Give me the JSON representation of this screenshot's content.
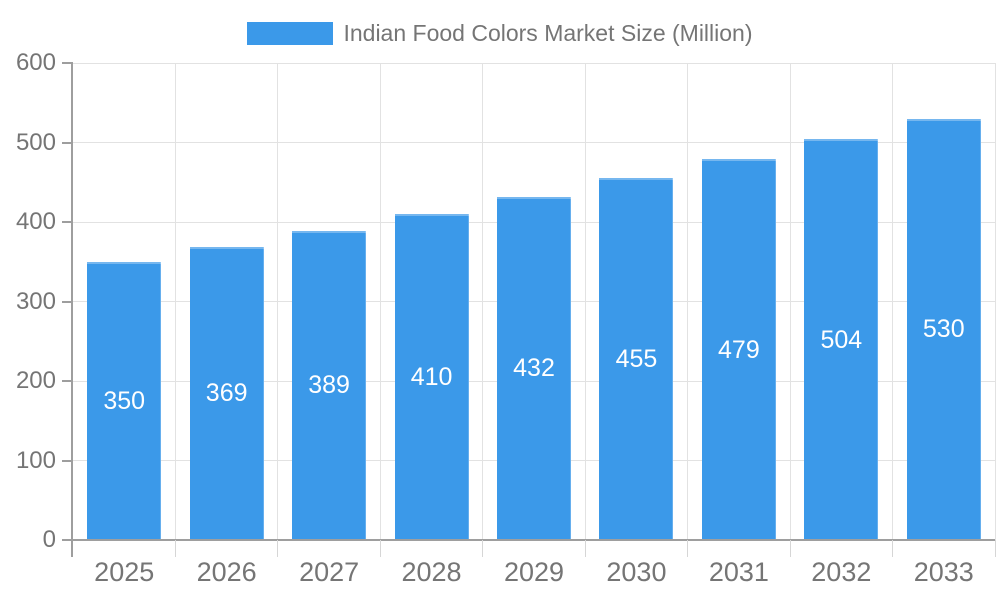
{
  "legend": {
    "label": "Indian Food Colors Market Size (Million)"
  },
  "chart_data": {
    "type": "bar",
    "title": "Indian Food Colors Market Size (Million)",
    "categories": [
      "2025",
      "2026",
      "2027",
      "2028",
      "2029",
      "2030",
      "2031",
      "2032",
      "2033"
    ],
    "series": [
      {
        "name": "Indian Food Colors Market Size (Million)",
        "values": [
          350,
          369,
          389,
          410,
          432,
          455,
          479,
          504,
          530
        ]
      }
    ],
    "bar_value_labels": true,
    "xlabel": "",
    "ylabel": "",
    "ylim": [
      0,
      600
    ],
    "yticks": [
      0,
      100,
      200,
      300,
      400,
      500,
      600
    ],
    "grid": true,
    "legend_position": "top",
    "colors": {
      "bar": "#3B99E9",
      "grid": "#E2E2E2",
      "axis": "#9E9E9E",
      "minor_tick": "#D6D6D6",
      "axis_label": "#757575",
      "value_label": "#FFFFFF",
      "background": "#FFFFFF"
    }
  }
}
